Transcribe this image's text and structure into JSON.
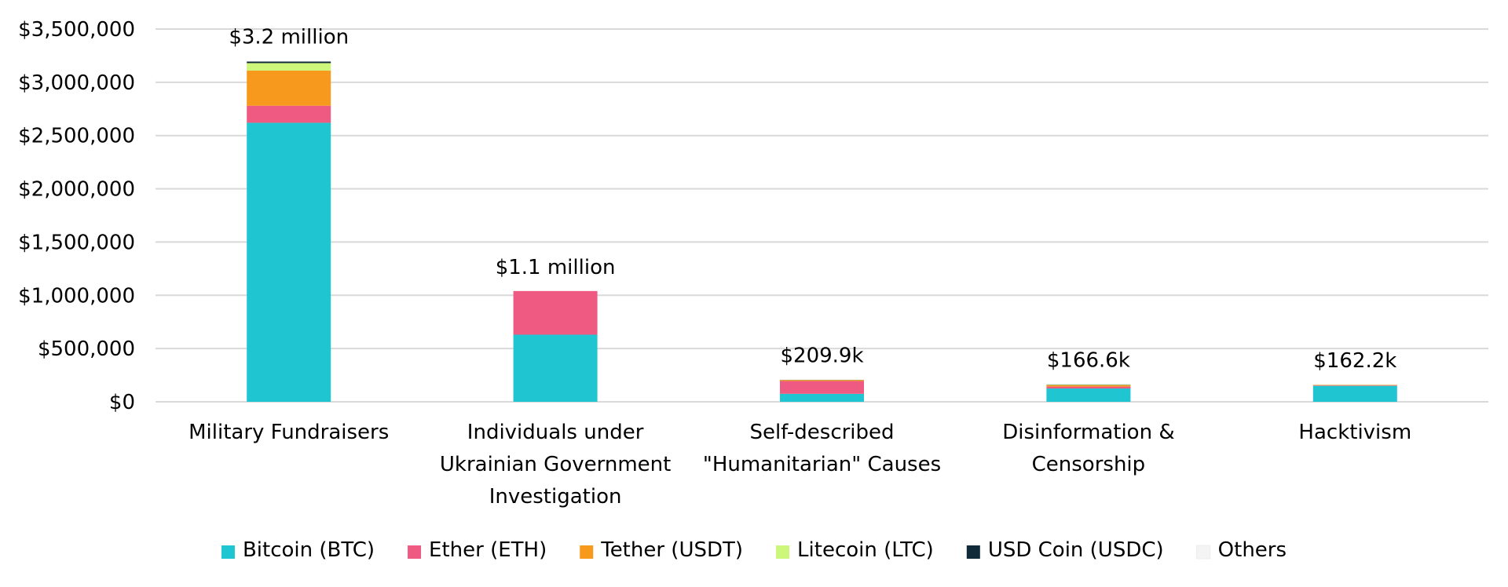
{
  "chart_data": {
    "type": "bar",
    "stacked": true,
    "title": "",
    "xlabel": "",
    "ylabel": "",
    "ylim": [
      0,
      3500000
    ],
    "y_ticks": [
      0,
      500000,
      1000000,
      1500000,
      2000000,
      2500000,
      3000000,
      3500000
    ],
    "y_tick_labels": [
      "$0",
      "$500,000",
      "$1,000,000",
      "$1,500,000",
      "$2,000,000",
      "$2,500,000",
      "$3,000,000",
      "$3,500,000"
    ],
    "grid": true,
    "legend_position": "bottom",
    "categories": [
      [
        "Military Fundraisers"
      ],
      [
        "Individuals under",
        "Ukrainian Government",
        "Investigation"
      ],
      [
        "Self-described",
        "\"Humanitarian\" Causes"
      ],
      [
        "Disinformation &",
        "Censorship"
      ],
      [
        "Hacktivism"
      ]
    ],
    "series": [
      {
        "name": "Bitcoin (BTC)",
        "color": "#1fc6d2",
        "values": [
          2620000,
          630000,
          75000,
          125000,
          150000
        ]
      },
      {
        "name": "Ether (ETH)",
        "color": "#ef5a83",
        "values": [
          160000,
          410000,
          120000,
          18000,
          4000
        ]
      },
      {
        "name": "Tether (USDT)",
        "color": "#f7991c",
        "values": [
          330000,
          0,
          10000,
          13000,
          7000
        ]
      },
      {
        "name": "Litecoin (LTC)",
        "color": "#ccf77a",
        "values": [
          70000,
          0,
          3000,
          6000,
          1000
        ]
      },
      {
        "name": "USD Coin (USDC)",
        "color": "#102a3a",
        "values": [
          15000,
          0,
          1000,
          2000,
          100
        ]
      },
      {
        "name": "Others",
        "color": "#f4f4f4",
        "values": [
          5000,
          0,
          900,
          2600,
          100
        ]
      }
    ],
    "totals": [
      "$3.2 million",
      "$1.1 million",
      "$209.9k",
      "$166.6k",
      "$162.2k"
    ]
  }
}
